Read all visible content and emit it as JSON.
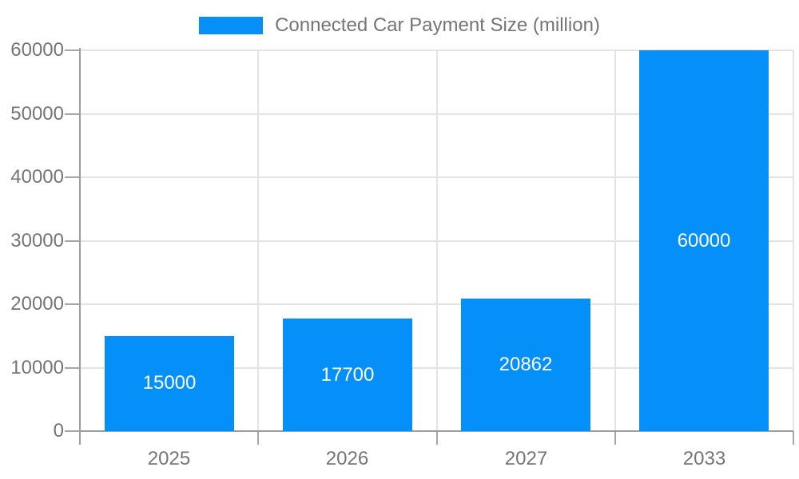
{
  "chart_data": {
    "type": "bar",
    "title": "Connected Car Payment Size (million)",
    "legend": {
      "position": "top",
      "label": "Connected Car Payment Size (million)"
    },
    "categories": [
      "2025",
      "2026",
      "2027",
      "2033"
    ],
    "values": [
      15000,
      17700,
      20862,
      60000
    ],
    "bar_value_labels": [
      "15000",
      "17700",
      "20862",
      "60000"
    ],
    "xlabel": "",
    "ylabel": "",
    "ylim": [
      0,
      60000
    ],
    "yticks": [
      0,
      10000,
      20000,
      30000,
      40000,
      50000,
      60000
    ],
    "ytick_labels": [
      "0",
      "10000",
      "20000",
      "30000",
      "40000",
      "50000",
      "60000"
    ],
    "grid": true,
    "colors": {
      "bar": "#058ff9",
      "axis_text": "#757575",
      "bar_label_text": "#ffffff",
      "gridline": "#e3e3e3",
      "axis_line": "#9e9e9e",
      "background": "#ffffff"
    }
  }
}
